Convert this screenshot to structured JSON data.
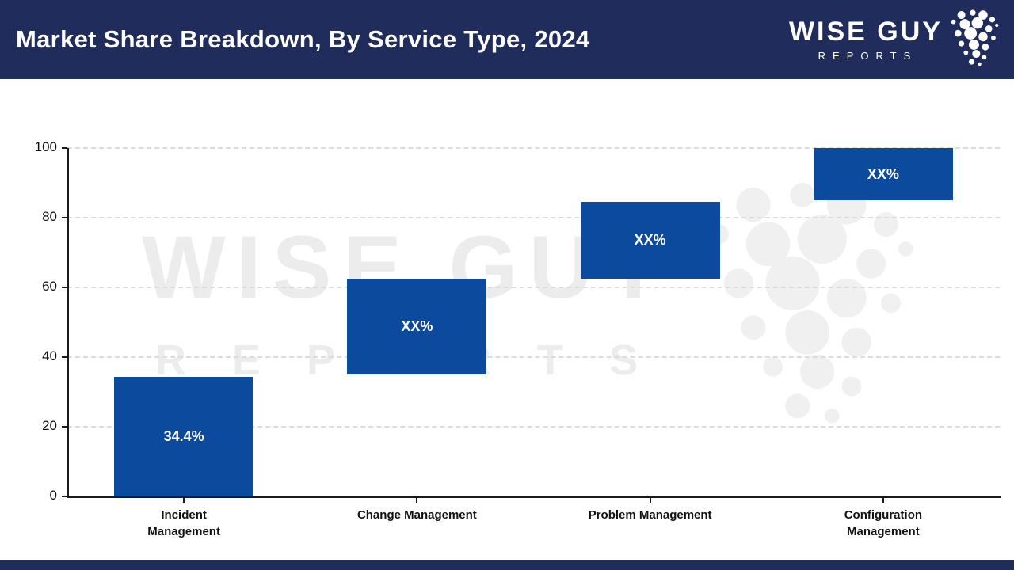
{
  "header": {
    "title": "Market Share Breakdown, By Service Type, 2024",
    "logo": {
      "name": "WISE GUY",
      "tagline": "REPORTS"
    }
  },
  "watermark": {
    "line1": "WISE GUY",
    "line2": "REPORTS"
  },
  "chart_data": {
    "type": "bar",
    "subtype": "waterfall",
    "title": "Market Share Breakdown, By Service Type, 2024",
    "xlabel": "",
    "ylabel": "",
    "ylim": [
      0,
      100
    ],
    "yticks": [
      0,
      20,
      40,
      60,
      80,
      100
    ],
    "grid": "horizontal-dashed",
    "legend": "none",
    "bar_color": "#0c4a9e",
    "value_label_color": "#ffffff",
    "categories": [
      "Incident Management",
      "Change Management",
      "Problem Management",
      "Configuration Management"
    ],
    "bars": [
      {
        "category": "Incident Management",
        "label_lines": [
          "Incident",
          "Management"
        ],
        "start": 0,
        "end": 34.4,
        "value_label": "34.4%"
      },
      {
        "category": "Change Management",
        "label_lines": [
          "Change Management"
        ],
        "start": 35,
        "end": 62.5,
        "value_label": "XX%"
      },
      {
        "category": "Problem Management",
        "label_lines": [
          "Problem Management"
        ],
        "start": 62.5,
        "end": 84.5,
        "value_label": "XX%"
      },
      {
        "category": "Configuration Management",
        "label_lines": [
          "Configuration",
          "Management"
        ],
        "start": 85,
        "end": 100,
        "value_label": "XX%"
      }
    ]
  },
  "colors": {
    "header_bg": "#1f2c5c",
    "footer_bg": "#1f2c5c",
    "accent_blue": "#0c4a9e"
  }
}
